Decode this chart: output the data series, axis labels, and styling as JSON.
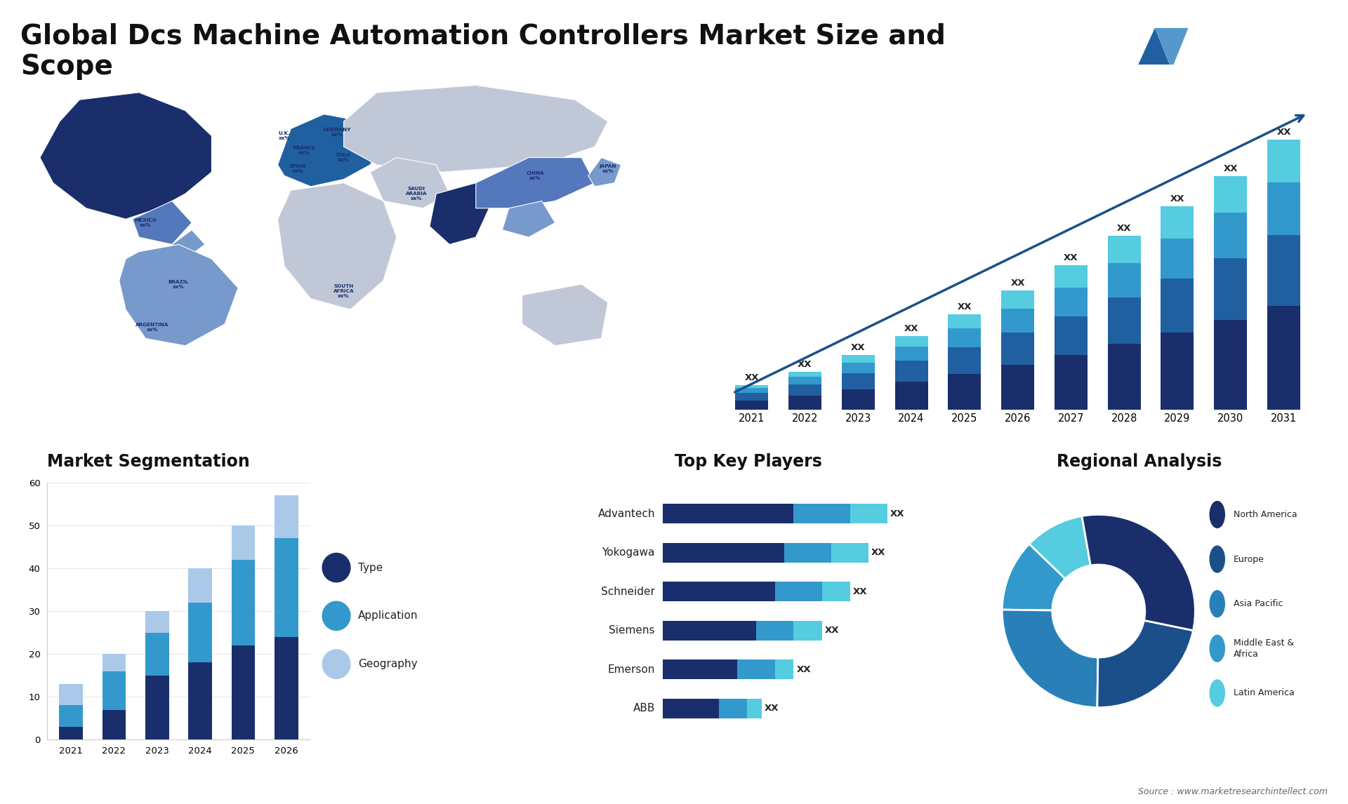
{
  "title": "Global Dcs Machine Automation Controllers Market Size and\nScope",
  "title_fontsize": 28,
  "background_color": "#ffffff",
  "bar_years": [
    "2021",
    "2022",
    "2023",
    "2024",
    "2025",
    "2026",
    "2027",
    "2028",
    "2029",
    "2030",
    "2031"
  ],
  "bar_s1": [
    1.0,
    1.5,
    2.2,
    3.0,
    3.8,
    4.8,
    5.8,
    7.0,
    8.2,
    9.5,
    11.0
  ],
  "bar_s2": [
    0.8,
    1.2,
    1.7,
    2.2,
    2.8,
    3.4,
    4.1,
    4.9,
    5.7,
    6.5,
    7.5
  ],
  "bar_s3": [
    0.5,
    0.8,
    1.1,
    1.5,
    2.0,
    2.5,
    3.0,
    3.6,
    4.2,
    4.8,
    5.5
  ],
  "bar_s4": [
    0.3,
    0.5,
    0.8,
    1.1,
    1.5,
    1.9,
    2.4,
    2.9,
    3.4,
    3.9,
    4.5
  ],
  "bar_colors": [
    "#1a2e6c",
    "#2060a0",
    "#3399cc",
    "#55cce0"
  ],
  "seg_years": [
    "2021",
    "2022",
    "2023",
    "2024",
    "2025",
    "2026"
  ],
  "seg_type": [
    3,
    7,
    15,
    18,
    22,
    24
  ],
  "seg_app": [
    5,
    9,
    10,
    14,
    20,
    23
  ],
  "seg_geo": [
    5,
    4,
    5,
    8,
    8,
    10
  ],
  "seg_colors": [
    "#1a2e6c",
    "#3399cc",
    "#aac9e8"
  ],
  "seg_title": "Market Segmentation",
  "seg_legend": [
    "Type",
    "Application",
    "Geography"
  ],
  "players": [
    "Advantech",
    "Yokogawa",
    "Schneider",
    "Siemens",
    "Emerson",
    "ABB"
  ],
  "p_v1": [
    7.0,
    6.5,
    6.0,
    5.0,
    4.0,
    3.0
  ],
  "p_v2": [
    3.0,
    2.5,
    2.5,
    2.0,
    2.0,
    1.5
  ],
  "p_v3": [
    2.0,
    2.0,
    1.5,
    1.5,
    1.0,
    0.8
  ],
  "p_colors": [
    "#1a2e6c",
    "#3399cc",
    "#55cce0"
  ],
  "players_title": "Top Key Players",
  "pie_sizes": [
    10,
    12,
    25,
    22,
    31
  ],
  "pie_colors": [
    "#55cce0",
    "#3399cc",
    "#2980b9",
    "#1b4f8a",
    "#1a2e6c"
  ],
  "pie_labels": [
    "Latin America",
    "Middle East &\nAfrica",
    "Asia Pacific",
    "Europe",
    "North America"
  ],
  "pie_title": "Regional Analysis",
  "source_text": "Source : www.marketresearchintellect.com",
  "arrow_color": "#1b4f8a"
}
